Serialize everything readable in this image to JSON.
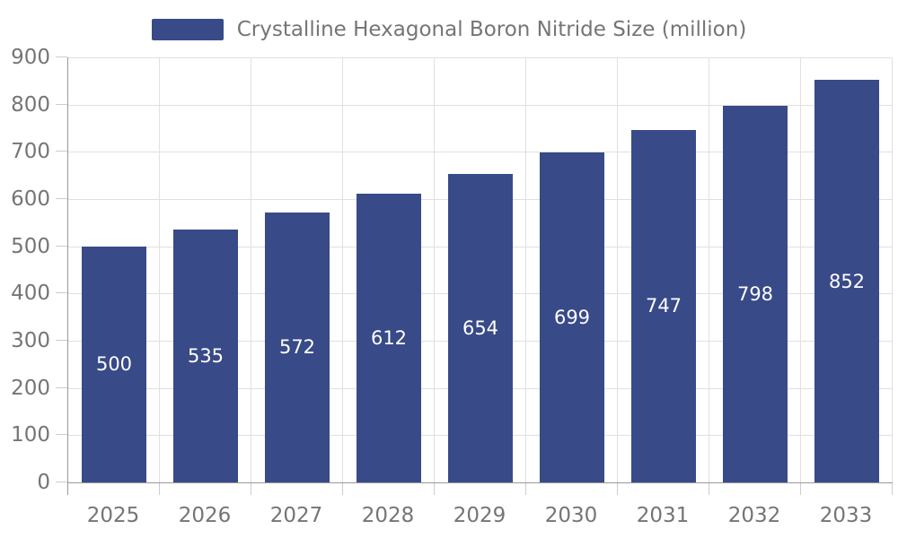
{
  "legend": {
    "label": "Crystalline Hexagonal Boron Nitride Size (million)"
  },
  "chart_data": {
    "type": "bar",
    "title": "Crystalline Hexagonal Boron Nitride Size (million)",
    "categories": [
      "2025",
      "2026",
      "2027",
      "2028",
      "2029",
      "2030",
      "2031",
      "2032",
      "2033"
    ],
    "values": [
      500,
      535,
      572,
      612,
      654,
      699,
      747,
      798,
      852
    ],
    "xlabel": "",
    "ylabel": "",
    "ylim": [
      0,
      900
    ],
    "yticks": [
      0,
      100,
      200,
      300,
      400,
      500,
      600,
      700,
      800,
      900
    ],
    "grid": true,
    "legend_position": "top-center",
    "value_labels": "inside-center",
    "colors": {
      "bar": "#384a87",
      "value_label": "#ffffff",
      "axis_line": "#999999",
      "grid_line": "#e0e0e0",
      "tick_mark": "#cccccc",
      "tick_label": "#757575",
      "legend_text": "#757575",
      "background": "#ffffff"
    }
  }
}
